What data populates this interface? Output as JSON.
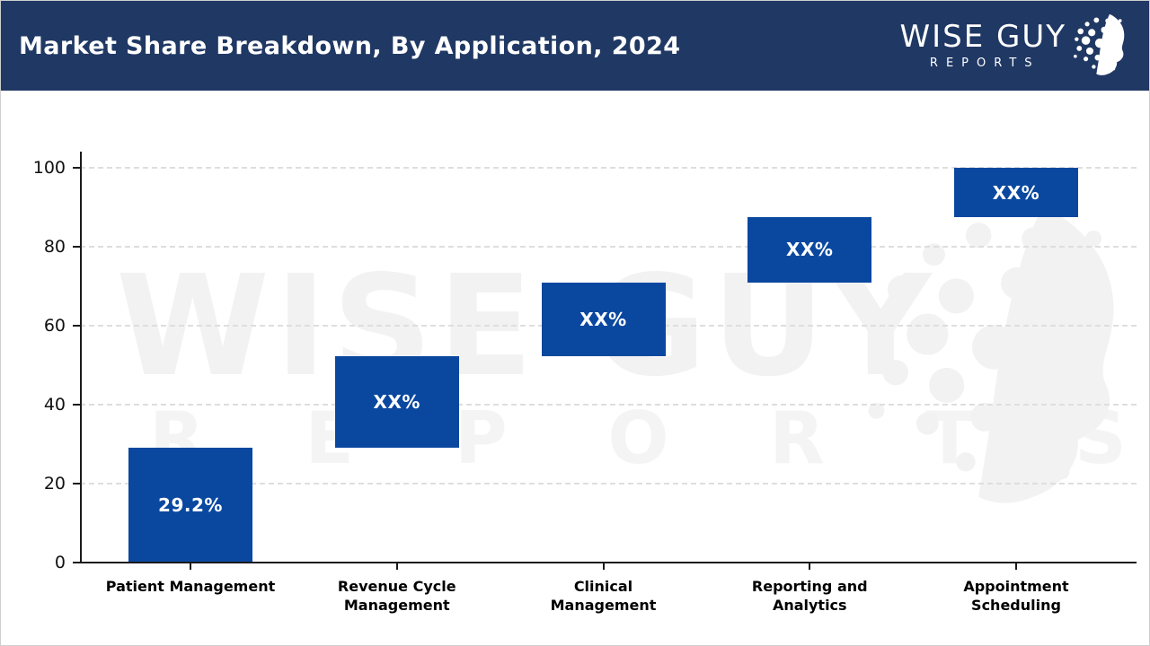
{
  "header": {
    "title": "Market Share Breakdown, By Application, 2024",
    "logo": {
      "name": "WISE GUY",
      "tagline": "REPORTS"
    }
  },
  "watermark": {
    "brand": "WISE GUY",
    "tagline": "R E P O R T S"
  },
  "chart_data": {
    "type": "bar",
    "variant": "waterfall",
    "title": "Market Share Breakdown, By Application, 2024",
    "categories": [
      "Patient Management",
      "Revenue Cycle Management",
      "Clinical Management",
      "Reporting and Analytics",
      "Appointment Scheduling"
    ],
    "segments": [
      {
        "category": "Patient Management",
        "category_lines": [
          "Patient Management"
        ],
        "start": 0,
        "end": 29.2,
        "value": 29.2,
        "value_label": "29.2%"
      },
      {
        "category": "Revenue Cycle Management",
        "category_lines": [
          "Revenue Cycle",
          "Management"
        ],
        "start": 29.2,
        "end": 52.2,
        "value": 23.0,
        "value_label": "XX%"
      },
      {
        "category": "Clinical Management",
        "category_lines": [
          "Clinical",
          "Management"
        ],
        "start": 52.2,
        "end": 71.0,
        "value": 18.8,
        "value_label": "XX%"
      },
      {
        "category": "Reporting and Analytics",
        "category_lines": [
          "Reporting and",
          "Analytics"
        ],
        "start": 71.0,
        "end": 87.5,
        "value": 16.5,
        "value_label": "XX%"
      },
      {
        "category": "Appointment Scheduling",
        "category_lines": [
          "Appointment",
          "Scheduling"
        ],
        "start": 87.5,
        "end": 100.0,
        "value": 12.5,
        "value_label": "XX%"
      }
    ],
    "xlabel": "",
    "ylabel": "",
    "ylim": [
      0,
      100
    ],
    "yticks": [
      0,
      20,
      40,
      60,
      80,
      100
    ],
    "grid": "horizontal-dashed",
    "legend": "none",
    "bar_color": "#0a48a0",
    "value_label_color": "#ffffff"
  },
  "colors": {
    "header_bg": "#203864",
    "bar": "#0a48a0",
    "axis": "#1a1a1a",
    "gridline": "#dedede",
    "watermark": "#f2f2f2",
    "page_bg": "#ffffff"
  }
}
